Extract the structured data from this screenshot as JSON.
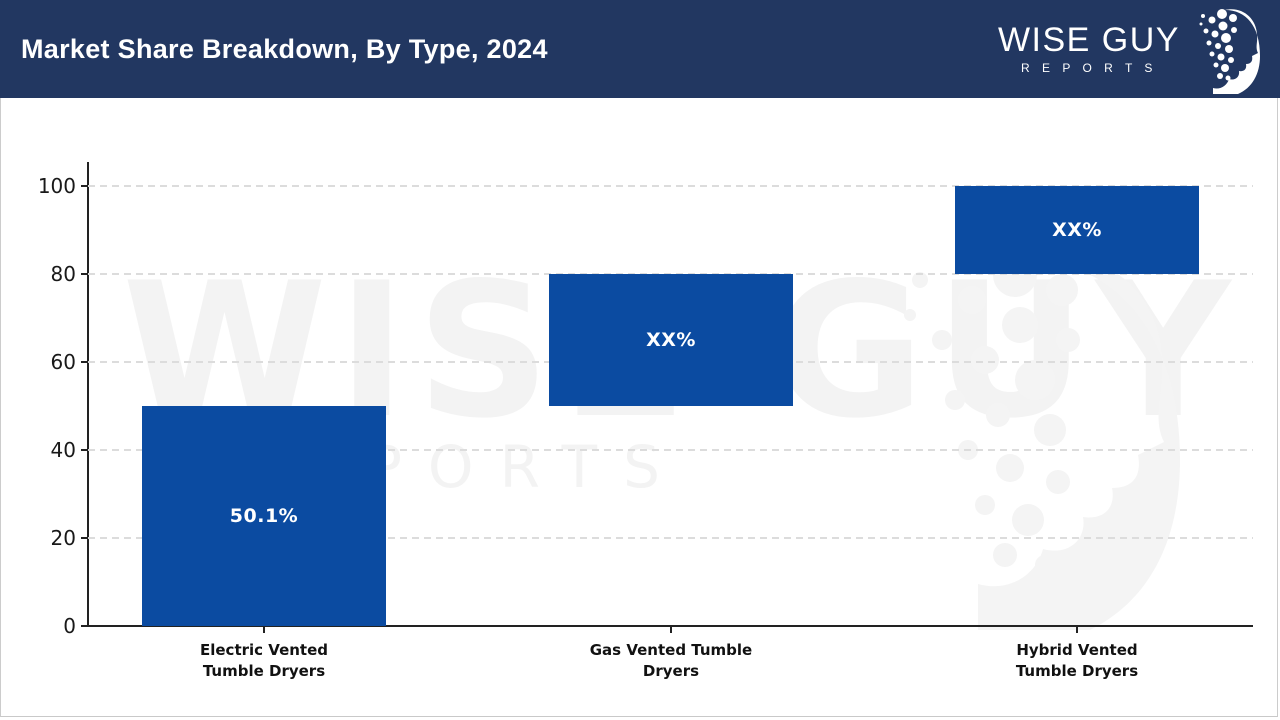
{
  "header": {
    "title": "Market Share Breakdown, By Type, 2024",
    "logo": {
      "line1": "WISE GUY",
      "line2": "R E P O R T S"
    }
  },
  "watermark": {
    "line1": "WISE GUY",
    "line2": "REPORTS"
  },
  "colors": {
    "header_bg": "#223761",
    "bar": "#0b4ba1",
    "grid": "#dcdcdc",
    "axis": "#222222",
    "bar_label": "#ffffff",
    "watermark": "#f3f3f3"
  },
  "chart_data": {
    "type": "bar",
    "subtype": "waterfall",
    "title": "Market Share Breakdown, By Type, 2024",
    "xlabel": "",
    "ylabel": "",
    "ylim": [
      0,
      100
    ],
    "yticks": [
      0,
      20,
      40,
      60,
      80,
      100
    ],
    "grid": "dashed-horizontal",
    "legend": "none",
    "categories": [
      "Electric Vented Tumble Dryers",
      "Gas Vented Tumble Dryers",
      "Hybrid Vented Tumble Dryers"
    ],
    "series": [
      {
        "name": "Electric Vented Tumble Dryers",
        "category_lines": [
          "Electric Vented",
          "Tumble Dryers"
        ],
        "start": 0,
        "end": 50.1,
        "label": "50.1%"
      },
      {
        "name": "Gas Vented Tumble Dryers",
        "category_lines": [
          "Gas Vented Tumble",
          "Dryers"
        ],
        "start": 50,
        "end": 80,
        "label": "XX%"
      },
      {
        "name": "Hybrid Vented Tumble Dryers",
        "category_lines": [
          "Hybrid Vented",
          "Tumble Dryers"
        ],
        "start": 80,
        "end": 100,
        "label": "XX%"
      }
    ]
  }
}
